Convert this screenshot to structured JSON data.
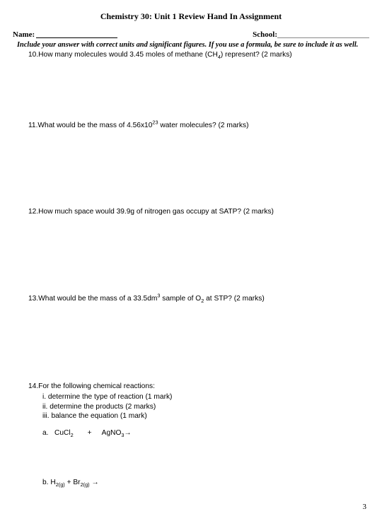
{
  "title": "Chemistry 30: Unit 1 Review Hand In Assignment",
  "header": {
    "name_label": "Name:",
    "school_label": "School:"
  },
  "instruction": "Include your answer with correct units and significant figures.  If you use a formula, be sure to include it as well.",
  "questions": {
    "q10": {
      "num": "10.",
      "text_a": "How many molecules would 3.45 moles of methane (CH",
      "sub1": "4",
      "text_b": ") represent? (2 marks)"
    },
    "q11": {
      "num": "11.",
      "text_a": "What would be the mass of 4.56x10",
      "sup1": "23",
      "text_b": " water molecules? (2 marks)"
    },
    "q12": {
      "num": "12.",
      "text": "How much space would 39.9g of nitrogen gas occupy at SATP? (2 marks)"
    },
    "q13": {
      "num": "13.",
      "text_a": "What would be the mass of a 33.5dm",
      "sup1": "3",
      "text_b": " sample of O",
      "sub1": "2",
      "text_c": " at STP? (2 marks)"
    },
    "q14": {
      "num": "14.",
      "intro": "For the following chemical reactions:",
      "i": "i.  determine the type of reaction (1 mark)",
      "ii": "ii. determine the products (2 marks)",
      "iii": "iii. balance the equation (1 mark)",
      "a": {
        "label": "a.",
        "r1": "CuCl",
        "r1_sub": "2",
        "plus": "+",
        "r2": "AgNO",
        "r2_sub": "3",
        "arrow": "→"
      },
      "b": {
        "label": "b.",
        "r1": "H",
        "r1_sub": "2(g)",
        "plus": " + ",
        "r2": "Br",
        "r2_sub": "2(g)",
        "arrow": " →"
      }
    }
  },
  "pagenum": "3"
}
